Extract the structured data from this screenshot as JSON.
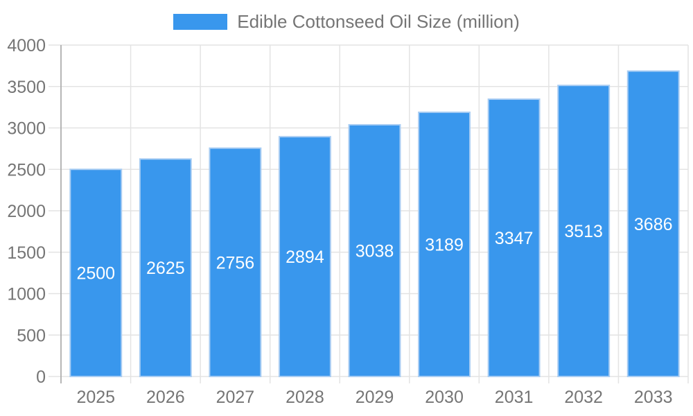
{
  "legend": {
    "label": "Edible Cottonseed Oil Size (million)"
  },
  "chart_data": {
    "type": "bar",
    "title": "Edible Cottonseed Oil Size (million)",
    "categories": [
      "2025",
      "2026",
      "2027",
      "2028",
      "2029",
      "2030",
      "2031",
      "2032",
      "2033"
    ],
    "values": [
      2500,
      2625,
      2756,
      2894,
      3038,
      3189,
      3347,
      3513,
      3686
    ],
    "series_name": "Edible Cottonseed Oil Size (million)",
    "xlabel": "",
    "ylabel": "",
    "ylim": [
      0,
      4000
    ],
    "ytick_step": 500,
    "y_tick_labels": [
      "0",
      "500",
      "1000",
      "1500",
      "2000",
      "2500",
      "3000",
      "3500",
      "4000"
    ],
    "grid": true,
    "legend_position": "top",
    "value_labels": "inside-center",
    "colors": {
      "bar_fill": "#3997ED",
      "bar_border": "#A9CDF3",
      "value_label": "#FFFFFF",
      "axis_text": "#757575",
      "gridline": "#E3E3E3",
      "axis_line": "#A3A3A3",
      "background": "#FFFFFF"
    }
  }
}
